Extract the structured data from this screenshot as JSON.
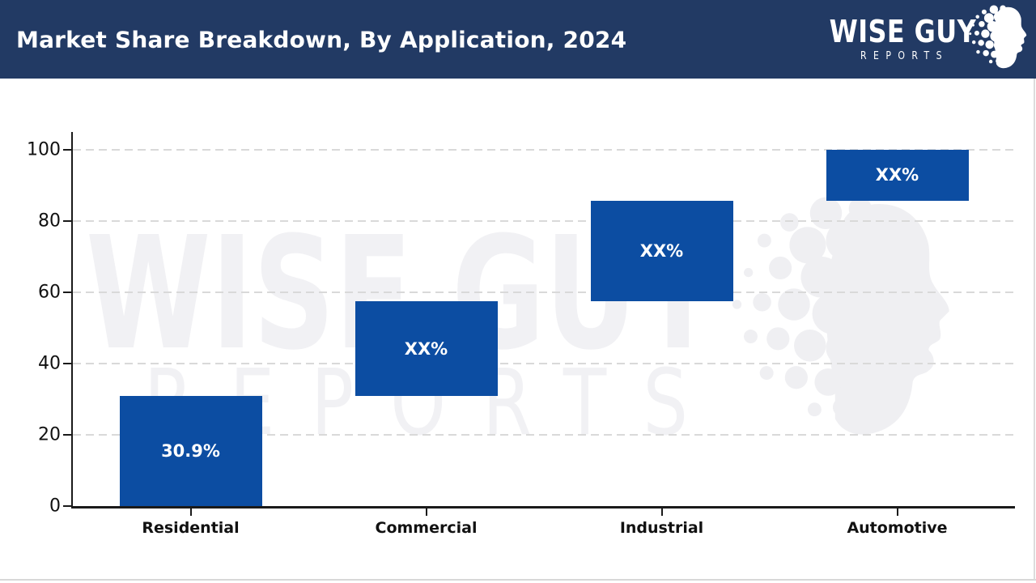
{
  "header": {
    "title": "Market Share Breakdown, By Application, 2024",
    "logo": {
      "line1": "WISE GUY",
      "line2": "REPORTS",
      "head_icon": "dotted-head-profile"
    }
  },
  "watermark": {
    "line1": "WISE GUY",
    "line2": "REPORTS",
    "head_icon": "dotted-head-profile"
  },
  "colors": {
    "header_bg": "#223A64",
    "bar": "#0C4DA2",
    "bar_label": "#ffffff",
    "axis": "#1a1a1a",
    "gridline": "#d9d9d9",
    "watermark": "#f1f1f4"
  },
  "chart_data": {
    "type": "bar",
    "subtype": "waterfall",
    "title": "Market Share Breakdown, By Application, 2024",
    "categories": [
      "Residential",
      "Commercial",
      "Industrial",
      "Automotive"
    ],
    "segments": [
      {
        "category": "Residential",
        "start": 0,
        "end": 30.9,
        "label": "30.9%"
      },
      {
        "category": "Commercial",
        "start": 30.9,
        "end": 57.4,
        "label": "XX%"
      },
      {
        "category": "Industrial",
        "start": 57.4,
        "end": 85.7,
        "label": "XX%"
      },
      {
        "category": "Automotive",
        "start": 85.7,
        "end": 100,
        "label": "XX%"
      }
    ],
    "xlabel": "",
    "ylabel": "",
    "y_ticks": [
      0,
      20,
      40,
      60,
      80,
      100
    ],
    "ylim": [
      0,
      105
    ],
    "grid": "dashed-horizontal",
    "legend": "none"
  }
}
